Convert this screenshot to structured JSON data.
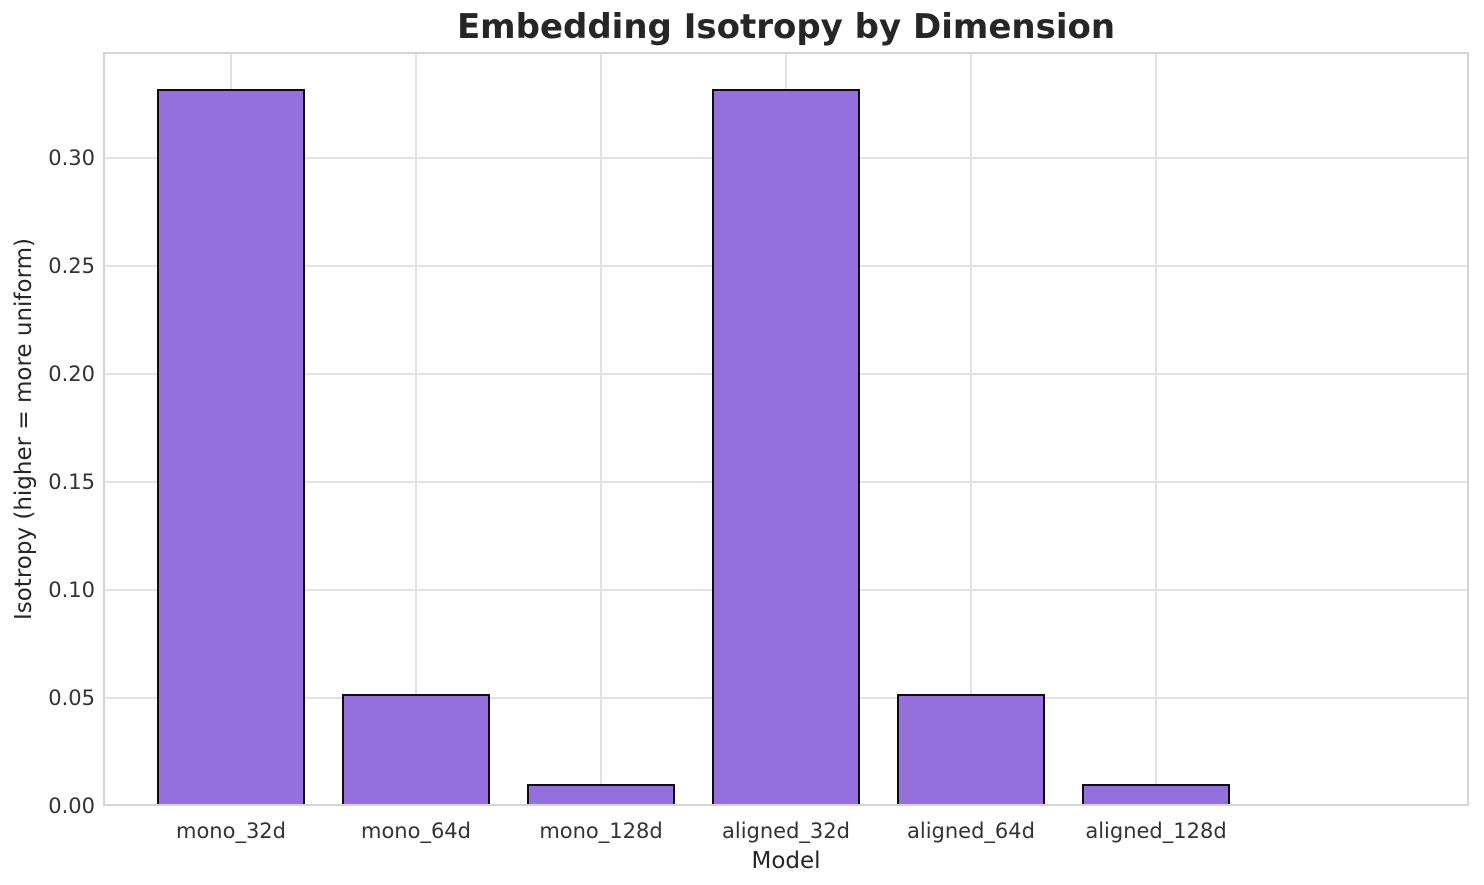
{
  "chart_data": {
    "type": "bar",
    "title": "Embedding Isotropy by Dimension",
    "xlabel": "Model",
    "ylabel": "Isotropy (higher = more uniform)",
    "categories": [
      "mono_32d",
      "mono_64d",
      "mono_128d",
      "aligned_32d",
      "aligned_64d",
      "aligned_128d"
    ],
    "values": [
      0.332,
      0.052,
      0.01,
      0.332,
      0.052,
      0.01
    ],
    "ylim": [
      0,
      0.349
    ],
    "yticks": [
      0.0,
      0.05,
      0.1,
      0.15,
      0.2,
      0.25,
      0.3
    ],
    "ytick_labels": [
      "0.00",
      "0.05",
      "0.10",
      "0.15",
      "0.20",
      "0.25",
      "0.30"
    ],
    "grid": "on",
    "legend": "none",
    "bar_color": "#9370DB",
    "bar_edge_color": "#0d0d0d",
    "grid_color": "#e2e2e2",
    "spine_color": "#d4d4d4",
    "text_color": "#262626"
  }
}
